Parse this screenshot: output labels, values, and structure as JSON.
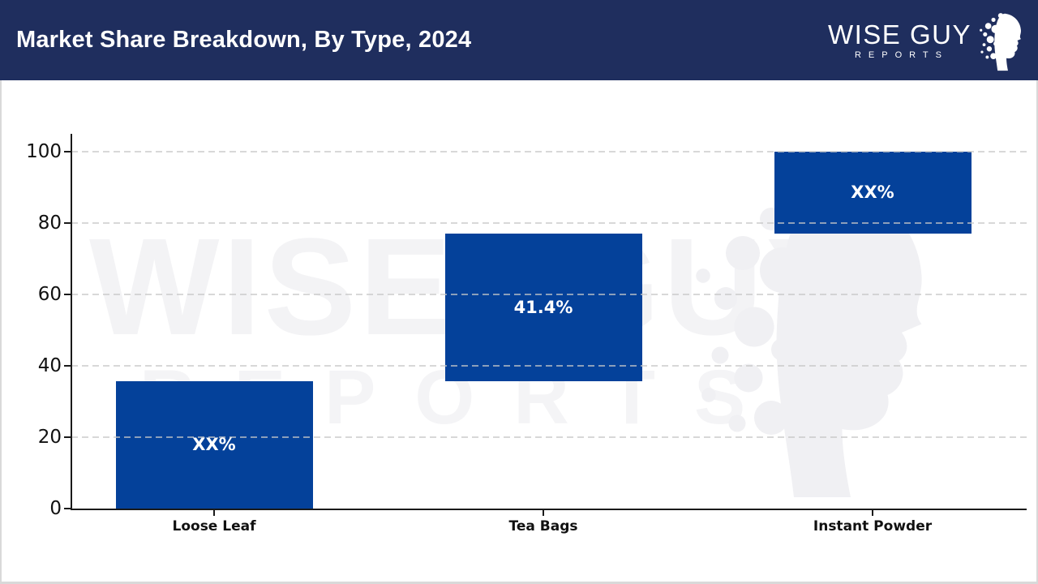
{
  "header": {
    "title": "Market Share Breakdown, By Type, 2024",
    "bg_color": "#1f2e5e",
    "logo": {
      "line1": "WISE GUY",
      "line2": "REPORTS"
    }
  },
  "watermark": {
    "line1": "WISE GUY",
    "line2": "REPORTS"
  },
  "chart_data": {
    "type": "bar",
    "subtype": "floating-waterfall",
    "title": "Market Share Breakdown, By Type, 2024",
    "categories": [
      "Loose Leaf",
      "Tea Bags",
      "Instant Powder"
    ],
    "segments": [
      {
        "category": "Loose Leaf",
        "label": "XX%",
        "start": 0,
        "end": 35.7
      },
      {
        "category": "Tea Bags",
        "label": "41.4%",
        "start": 35.7,
        "end": 77.1
      },
      {
        "category": "Instant Powder",
        "label": "XX%",
        "start": 77.1,
        "end": 100
      }
    ],
    "ylim": [
      0,
      100
    ],
    "yticks": [
      0,
      20,
      40,
      60,
      80,
      100
    ],
    "xlabel": "",
    "ylabel": "",
    "grid": "horizontal-dashed",
    "legend": "none",
    "bar_color": "#04419a",
    "bar_label_color": "#ffffff"
  }
}
